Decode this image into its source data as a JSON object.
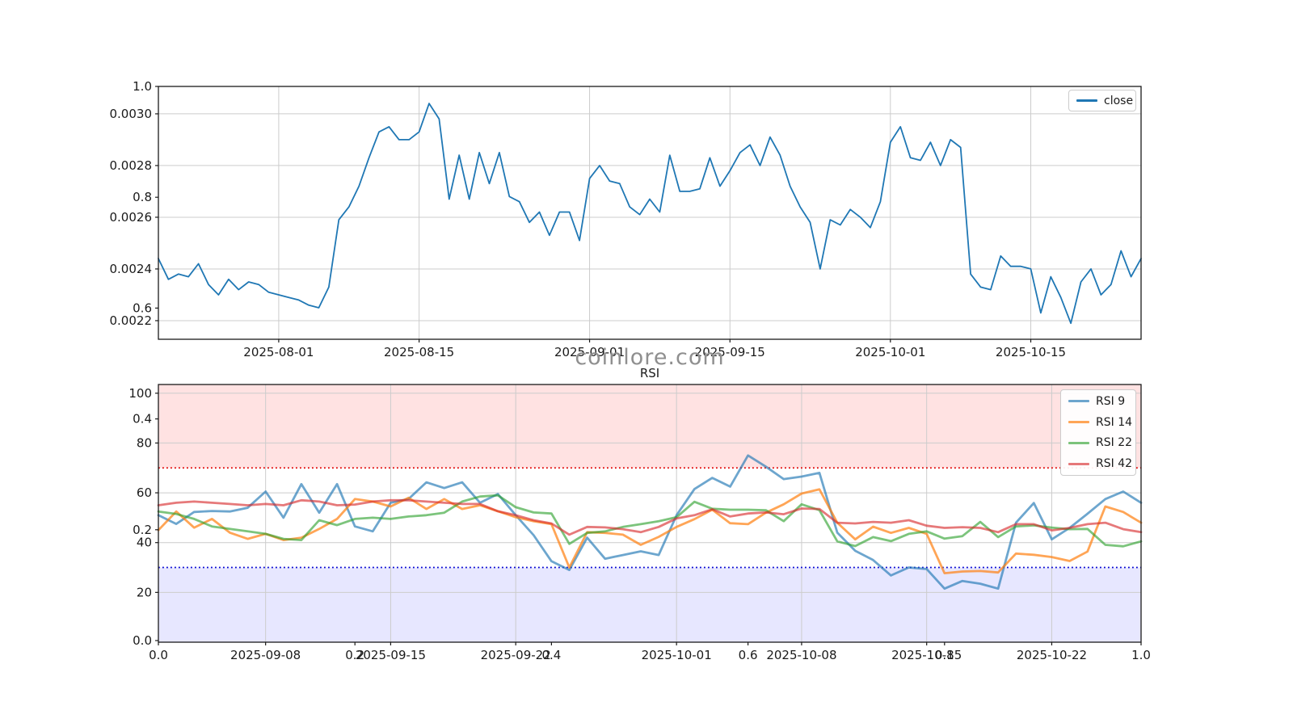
{
  "watermark": "coinlore.com",
  "overlay_axis": {
    "x_tick_labels": [
      "0.0",
      "0.2",
      "0.4",
      "0.6",
      "0.8",
      "1.0"
    ],
    "y_tick_labels": [
      "0.0",
      "0.2",
      "0.4",
      "0.6",
      "0.8",
      "1.0"
    ]
  },
  "legend_close": {
    "items": [
      {
        "label": "close"
      }
    ]
  },
  "legend_rsi": {
    "items": [
      {
        "label": "RSI 9"
      },
      {
        "label": "RSI 14"
      },
      {
        "label": "RSI 22"
      },
      {
        "label": "RSI 42"
      }
    ]
  },
  "chart_data": [
    {
      "type": "line",
      "name": "price",
      "title": "",
      "legend_position": "upper right",
      "grid": true,
      "start_date": "2025-07-20",
      "interval_days": 1,
      "x_tick_labels": [
        "2025-08-01",
        "2025-08-15",
        "2025-09-01",
        "2025-09-15",
        "2025-10-01",
        "2025-10-15"
      ],
      "y_ticks": [
        {
          "value": 0.0022,
          "label": "0.0022"
        },
        {
          "value": 0.0024,
          "label": "0.0024"
        },
        {
          "value": 0.0026,
          "label": "0.0026"
        },
        {
          "value": 0.0028,
          "label": "0.0028"
        },
        {
          "value": 0.003,
          "label": "0.0030"
        }
      ],
      "ylim": [
        0.002128,
        0.003106
      ],
      "series": [
        {
          "name": "close",
          "color": "#1f77b4",
          "width": 1.8,
          "values": [
            0.00244,
            0.00236,
            0.00238,
            0.00237,
            0.00242,
            0.00234,
            0.0023,
            0.00236,
            0.00232,
            0.00235,
            0.00234,
            0.00231,
            0.0023,
            0.00229,
            0.00228,
            0.00226,
            0.00225,
            0.00233,
            0.00259,
            0.00264,
            0.00272,
            0.00283,
            0.00293,
            0.00295,
            0.0029,
            0.0029,
            0.00293,
            0.00304,
            0.00298,
            0.00267,
            0.00284,
            0.00267,
            0.00285,
            0.00273,
            0.00285,
            0.00268,
            0.00266,
            0.00258,
            0.00262,
            0.00253,
            0.00262,
            0.00262,
            0.00251,
            0.00275,
            0.0028,
            0.00274,
            0.00273,
            0.00264,
            0.00261,
            0.00267,
            0.00262,
            0.00284,
            0.0027,
            0.0027,
            0.00271,
            0.00283,
            0.00272,
            0.00278,
            0.00285,
            0.00288,
            0.0028,
            0.00291,
            0.00284,
            0.00272,
            0.00264,
            0.00258,
            0.0024,
            0.00259,
            0.00257,
            0.00263,
            0.0026,
            0.00256,
            0.00266,
            0.00289,
            0.00295,
            0.00283,
            0.00282,
            0.00289,
            0.0028,
            0.0029,
            0.00287,
            0.00238,
            0.00233,
            0.00232,
            0.00245,
            0.00241,
            0.00241,
            0.0024,
            0.00223,
            0.00237,
            0.00229,
            0.00219,
            0.00235,
            0.0024,
            0.0023,
            0.00234,
            0.00247,
            0.00237,
            0.00244
          ]
        }
      ]
    },
    {
      "type": "line",
      "name": "rsi",
      "title": "RSI",
      "legend_position": "upper right",
      "grid": true,
      "start_date": "2025-09-02",
      "interval_days": 1,
      "x_tick_labels": [
        "2025-09-08",
        "2025-09-15",
        "2025-09-22",
        "2025-10-01",
        "2025-10-08",
        "2025-10-15",
        "2025-10-22"
      ],
      "y_ticks": [
        {
          "value": 20,
          "label": "20"
        },
        {
          "value": 40,
          "label": "40"
        },
        {
          "value": 60,
          "label": "60"
        },
        {
          "value": 80,
          "label": "80"
        },
        {
          "value": 100,
          "label": "100"
        }
      ],
      "ylim": [
        0,
        103.5
      ],
      "bands": [
        {
          "from": 70,
          "to": 103.5,
          "color": "rgba(255,50,50,0.14)",
          "name": "overbought-zone"
        },
        {
          "from": 0,
          "to": 30,
          "color": "rgba(70,70,255,0.13)",
          "name": "oversold-zone"
        }
      ],
      "hlines": [
        {
          "y": 70,
          "color": "#e00000",
          "style": "dotted",
          "name": "overbought-threshold"
        },
        {
          "y": 30,
          "color": "#0000d0",
          "style": "dotted",
          "name": "oversold-threshold"
        }
      ],
      "series": [
        {
          "name": "RSI 9",
          "color": "rgba(31,119,180,0.65)",
          "width": 2.8,
          "values": [
            51,
            47.5,
            52.3,
            52.7,
            52.5,
            54,
            60.5,
            50,
            63.5,
            52,
            63.5,
            46.5,
            44.5,
            56,
            57.5,
            64.2,
            61.9,
            64.2,
            56,
            59.5,
            51,
            43,
            32.5,
            29,
            42,
            33.5,
            35,
            36.5,
            35,
            51,
            61.5,
            66,
            62.5,
            75,
            70.5,
            65.5,
            66.5,
            68,
            44,
            36.7,
            33,
            26.8,
            30,
            29.4,
            21.5,
            24.6,
            23.5,
            21.5,
            48,
            55.9,
            41.3,
            45.9,
            51.6,
            57.5,
            60.5,
            56
          ]
        },
        {
          "name": "RSI 14",
          "color": "rgba(255,127,14,0.7)",
          "width": 2.8,
          "values": [
            45,
            52.5,
            46,
            49.5,
            44,
            41.5,
            43.5,
            41,
            42,
            45.5,
            49.5,
            57.5,
            56.5,
            54.5,
            58,
            53.5,
            57.5,
            53.5,
            55,
            52.6,
            50.2,
            48.6,
            47.4,
            30,
            44.2,
            43.9,
            43.2,
            39.1,
            42.3,
            46.3,
            49.4,
            53.2,
            47.8,
            47.4,
            52,
            55.4,
            59.7,
            61.4,
            48,
            41.3,
            46.4,
            43.9,
            45.9,
            43.5,
            27.7,
            28.4,
            28.6,
            28,
            35.6,
            35.1,
            34.2,
            32.6,
            36.4,
            54.5,
            52.3,
            48
          ]
        },
        {
          "name": "RSI 22",
          "color": "rgba(44,160,44,0.62)",
          "width": 2.8,
          "values": [
            52.5,
            51.5,
            49.5,
            46.5,
            45.5,
            44.5,
            43.5,
            41.5,
            41,
            49,
            47,
            49.5,
            50,
            49.5,
            50.5,
            51,
            52,
            56.5,
            58.5,
            59,
            54.2,
            52.1,
            51.7,
            39.5,
            43.9,
            44.5,
            46.3,
            47.4,
            48.6,
            50.2,
            56.4,
            53.6,
            53.2,
            53.2,
            53,
            48.6,
            55.4,
            53,
            40.5,
            38.6,
            42.2,
            40.6,
            43.5,
            44.5,
            41.6,
            42.6,
            48.3,
            42.2,
            46.5,
            46.9,
            46,
            45.4,
            45.5,
            39.1,
            38.5,
            40.5
          ]
        },
        {
          "name": "RSI 42",
          "color": "rgba(214,39,40,0.62)",
          "width": 2.8,
          "values": [
            55,
            56,
            56.5,
            56,
            55.5,
            55,
            55.5,
            55,
            57,
            56.5,
            55,
            55.3,
            56.5,
            57,
            57,
            56.5,
            56,
            55.5,
            55.5,
            52.6,
            51,
            49,
            47.7,
            43.2,
            46.3,
            46.1,
            45.4,
            44.2,
            46.3,
            49.7,
            51,
            53.4,
            50.5,
            51.7,
            52.1,
            51.4,
            53.7,
            53.5,
            48,
            47.7,
            48.3,
            48,
            49,
            46.8,
            45.9,
            46.2,
            45.9,
            44.2,
            47.4,
            47.4,
            44.9,
            45.9,
            47.4,
            48,
            45.4,
            44.2
          ]
        }
      ]
    }
  ]
}
